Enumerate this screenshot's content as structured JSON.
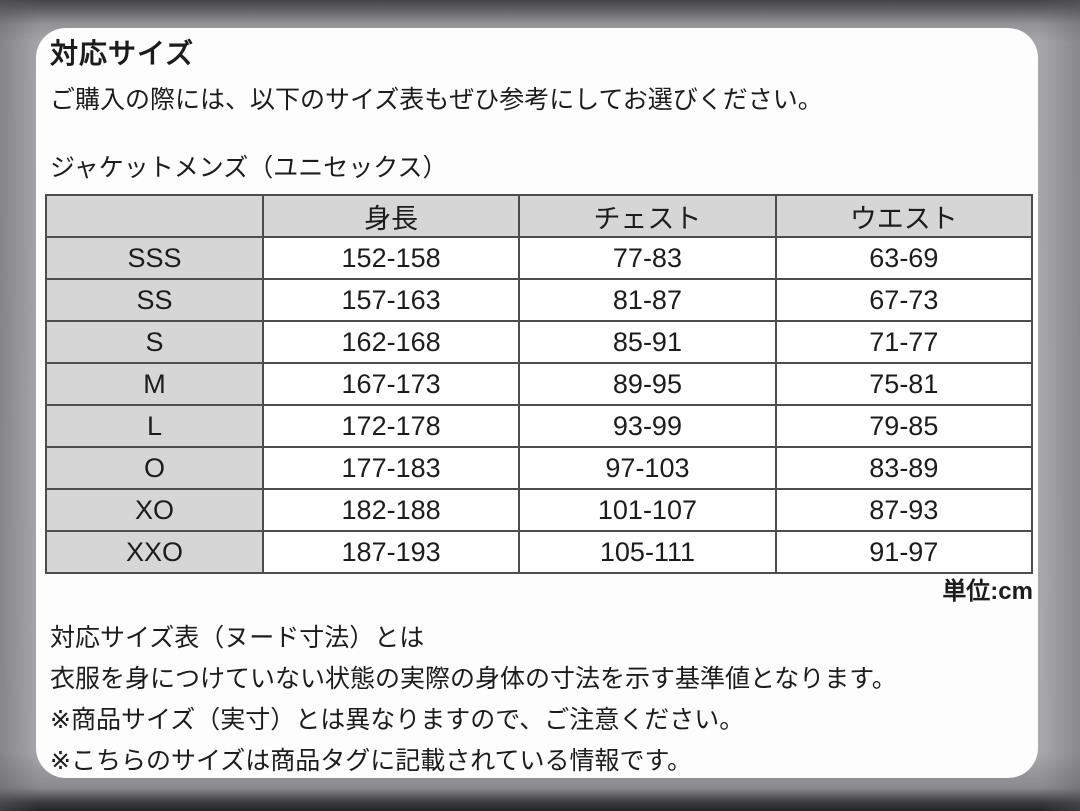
{
  "page": {
    "title": "対応サイズ",
    "intro": "ご購入の際には、以下のサイズ表もぜひ参考にしてお選びください。",
    "section_label": "ジャケットメンズ（ユニセックス）",
    "unit_label": "単位:cm"
  },
  "size_table": {
    "columns": [
      "",
      "身長",
      "チェスト",
      "ウエスト"
    ],
    "rows": [
      [
        "SSS",
        "152-158",
        "77-83",
        "63-69"
      ],
      [
        "SS",
        "157-163",
        "81-87",
        "67-73"
      ],
      [
        "S",
        "162-168",
        "85-91",
        "71-77"
      ],
      [
        "M",
        "167-173",
        "89-95",
        "75-81"
      ],
      [
        "L",
        "172-178",
        "93-99",
        "79-85"
      ],
      [
        "O",
        "177-183",
        "97-103",
        "83-89"
      ],
      [
        "XO",
        "182-188",
        "101-107",
        "87-93"
      ],
      [
        "XXO",
        "187-193",
        "105-111",
        "91-97"
      ]
    ]
  },
  "notes": [
    "対応サイズ表（ヌード寸法）とは",
    "衣服を身につけていない状態の実際の身体の寸法を示す基準値となります。",
    "※商品サイズ（実寸）とは異なりますので、ご注意ください。",
    "※こちらのサイズは商品タグに記載されている情報です。"
  ],
  "colors": {
    "page_background": "#a7a7ab",
    "card_background": "#fdfdfd",
    "table_header_background": "#d6d6d6",
    "table_border": "#4d4d4d",
    "text": "#1c1c1c"
  }
}
